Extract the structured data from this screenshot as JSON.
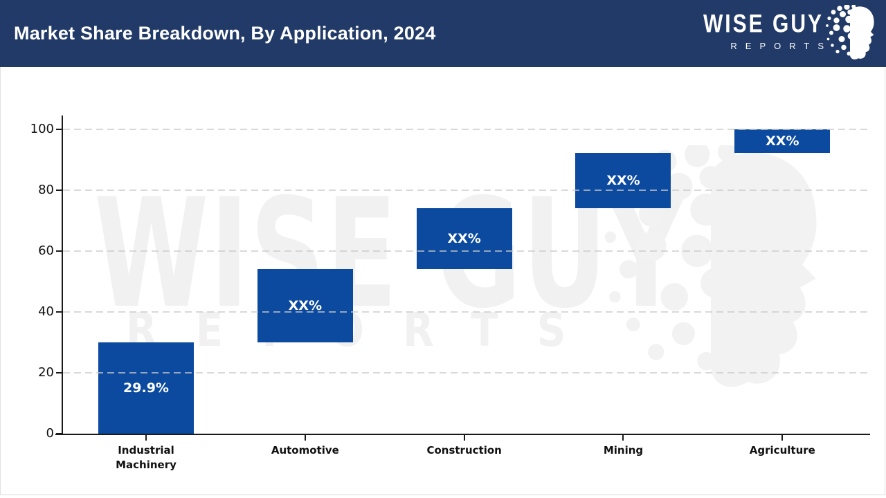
{
  "header": {
    "title": "Market Share Breakdown, By Application, 2024",
    "bg_color": "#223A67",
    "logo": {
      "wordmark": "WISE GUY",
      "subtitle": "REPORTS"
    }
  },
  "watermark": {
    "line1": "WISE GUY",
    "line2": "REPORTS"
  },
  "chart_data": {
    "type": "bar",
    "subtype": "waterfall",
    "title": "Market Share Breakdown, By Application, 2024",
    "categories": [
      "Industrial Machinery",
      "Automotive",
      "Construction",
      "Mining",
      "Agriculture"
    ],
    "segments": [
      {
        "category": "Industrial Machinery",
        "category_lines": [
          "Industrial",
          "Machinery"
        ],
        "start": 0,
        "end": 29.9,
        "label": "29.9%"
      },
      {
        "category": "Automotive",
        "category_lines": [
          "Automotive"
        ],
        "start": 29.9,
        "end": 54.0,
        "label": "XX%"
      },
      {
        "category": "Construction",
        "category_lines": [
          "Construction"
        ],
        "start": 54.0,
        "end": 74.0,
        "label": "XX%"
      },
      {
        "category": "Mining",
        "category_lines": [
          "Mining"
        ],
        "start": 74.0,
        "end": 92.3,
        "label": "XX%"
      },
      {
        "category": "Agriculture",
        "category_lines": [
          "Agriculture"
        ],
        "start": 92.3,
        "end": 100,
        "label": "XX%"
      }
    ],
    "ylim": [
      0,
      100
    ],
    "yticks": [
      0,
      20,
      40,
      60,
      80,
      100
    ],
    "grid": "horizontal-dashed",
    "legend": "none",
    "bar_color": "#0B4A9E",
    "value_label_color": "#FFFFFF",
    "axis_color": "#1A1A1A"
  }
}
